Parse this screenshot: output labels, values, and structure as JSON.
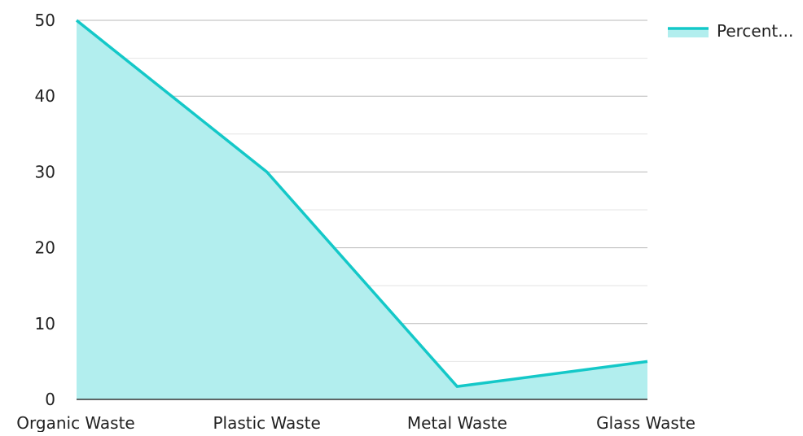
{
  "chart_data": {
    "type": "area",
    "title": "",
    "xlabel": "",
    "ylabel": "",
    "categories": [
      "Organic Waste",
      "Plastic Waste",
      "Metal Waste",
      "Glass Waste"
    ],
    "series": [
      {
        "name": "Percent...",
        "values": [
          50,
          30,
          1.7,
          5
        ]
      }
    ],
    "ylim": [
      0,
      50
    ],
    "yticks": [
      0,
      10,
      20,
      30,
      40,
      50
    ],
    "grid": true,
    "legend": "top-right",
    "colors": {
      "line": "#14c8c8",
      "fill": "#b2eeee",
      "grid_major": "#b8b8b8",
      "grid_minor": "#e4e4e4",
      "axis": "#333333"
    }
  }
}
